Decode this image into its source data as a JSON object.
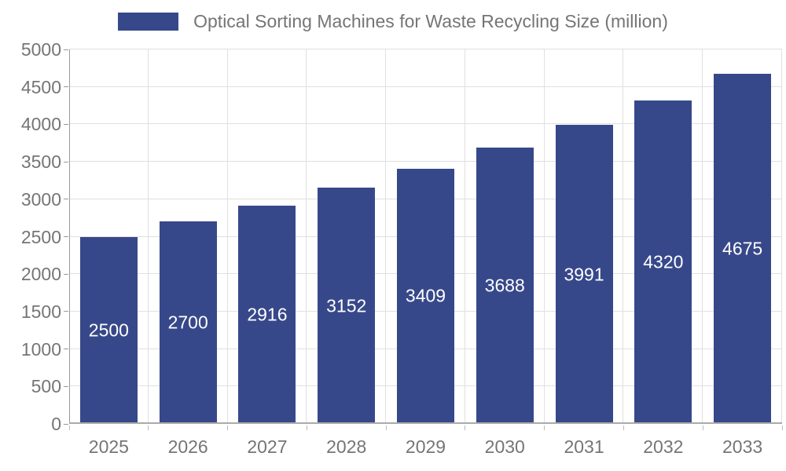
{
  "legend": {
    "label": "Optical Sorting Machines for Waste Recycling Size (million)"
  },
  "chart_data": {
    "type": "bar",
    "title": "Optical Sorting Machines for Waste Recycling Size (million)",
    "categories": [
      "2025",
      "2026",
      "2027",
      "2028",
      "2029",
      "2030",
      "2031",
      "2032",
      "2033"
    ],
    "values": [
      2500,
      2700,
      2916,
      3152,
      3409,
      3688,
      3991,
      4320,
      4675
    ],
    "xlabel": "",
    "ylabel": "",
    "ylim": [
      0,
      5000
    ],
    "ytick_step": 500,
    "grid": true,
    "legend_position": "top",
    "bar_color": "#37488A",
    "value_label_color": "#ffffff",
    "axis_text_color": "#757575",
    "grid_color": "#e0e0e0",
    "axis_line_color": "#999999"
  }
}
